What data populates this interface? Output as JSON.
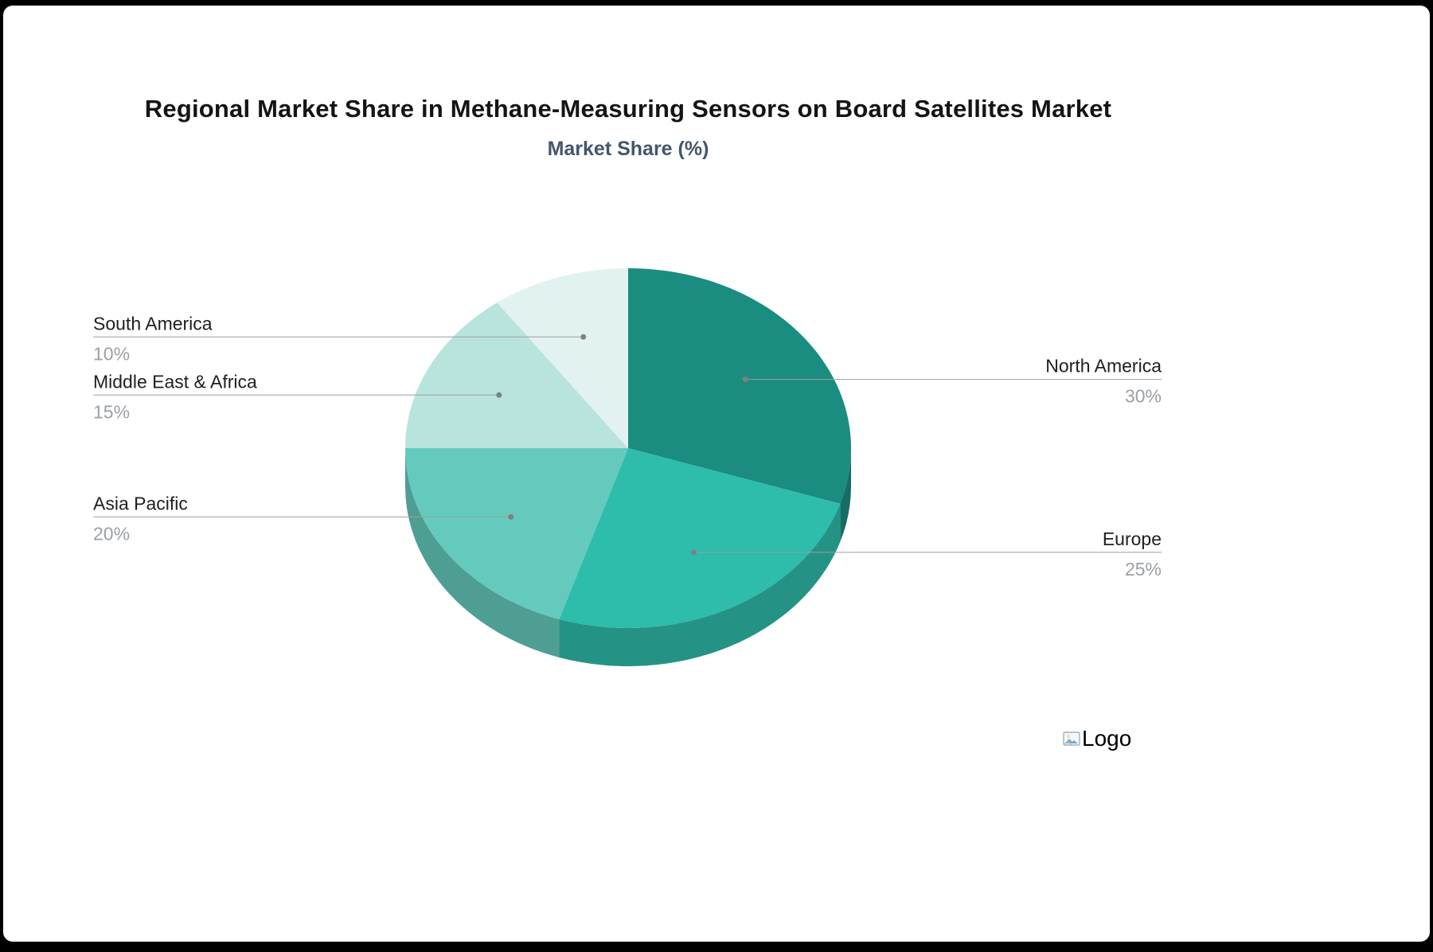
{
  "header": {
    "title": "Regional Market Share in Methane-Measuring Sensors on Board Satellites Market",
    "subtitle": "Market Share (%)"
  },
  "chart_data": {
    "type": "pie",
    "title": "Regional Market Share in Methane-Measuring Sensors on Board Satellites Market",
    "subtitle": "Market Share (%)",
    "labels": [
      "North America",
      "Europe",
      "Asia Pacific",
      "Middle East & Africa",
      "South America"
    ],
    "values": [
      30,
      25,
      20,
      15,
      10
    ],
    "value_labels": [
      "30%",
      "25%",
      "20%",
      "15%",
      "10%"
    ],
    "colors": [
      "#1b8c80",
      "#2ebcab",
      "#64cabd",
      "#b9e4de",
      "#e2f2f0"
    ],
    "start_angle_deg": -90,
    "direction": "clockwise",
    "effect": "3d",
    "legend": "none",
    "grid": "off",
    "leader_line_color": "#9e9e9e",
    "label_color": "#1f1f1f",
    "value_color": "#9aa0a6",
    "background": "#ffffff"
  },
  "footer": {
    "logo_text": "Logo"
  }
}
